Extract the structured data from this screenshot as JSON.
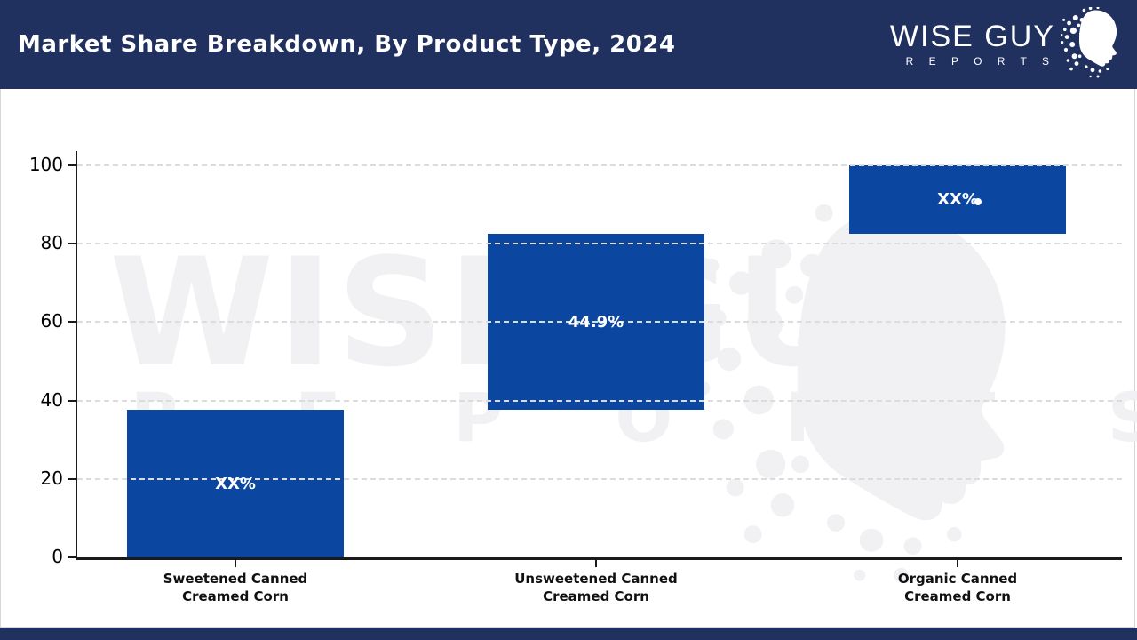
{
  "header": {
    "title": "Market Share Breakdown, By Product Type, 2024",
    "logo": {
      "name": "WISE GUY",
      "sub": "R E P O R T S"
    }
  },
  "watermark": {
    "main": "WISE GUY",
    "sub": "R E P O R T S"
  },
  "chart_data": {
    "type": "bar",
    "subtype": "floating-segment-waterfall",
    "title": "Market Share Breakdown, By Product Type, 2024",
    "categories": [
      [
        "Sweetened Canned",
        "Creamed Corn"
      ],
      [
        "Unsweetened Canned",
        "Creamed Corn"
      ],
      [
        "Organic Canned",
        "Creamed Corn"
      ]
    ],
    "segments": [
      {
        "category": "Sweetened Canned Creamed Corn",
        "start": 0,
        "end": 37.6,
        "label": "XX%"
      },
      {
        "category": "Unsweetened Canned Creamed Corn",
        "start": 37.6,
        "end": 82.5,
        "label": "44.9%"
      },
      {
        "category": "Organic Canned Creamed Corn",
        "start": 82.5,
        "end": 100,
        "label": "XX%"
      }
    ],
    "xlabel": "",
    "ylabel": "",
    "ylim": [
      0,
      100
    ],
    "yticks": [
      0,
      20,
      40,
      60,
      80,
      100
    ],
    "grid": {
      "horizontal": true,
      "style": "dashed",
      "over_bars": true
    },
    "legend": null,
    "colors": {
      "bar": "#0b47a1",
      "bar_label": "#ffffff",
      "axis": "#1a1a1a",
      "tick_label": "#000000",
      "gridline": "#dcdcdc",
      "navy": "#20305f",
      "watermark": "#f1f1f4",
      "background": "#ffffff"
    }
  }
}
